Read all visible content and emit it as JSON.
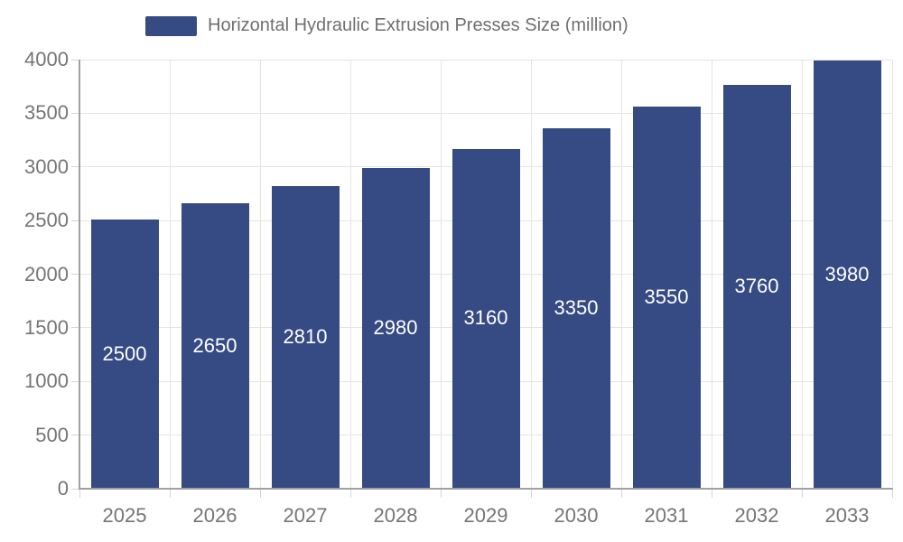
{
  "chart_data": {
    "type": "bar",
    "title": "Horizontal Hydraulic Extrusion Presses Size (million)",
    "legend_label": "Horizontal Hydraulic Extrusion Presses Size (million)",
    "categories": [
      "2025",
      "2026",
      "2027",
      "2028",
      "2029",
      "2030",
      "2031",
      "2032",
      "2033"
    ],
    "values": [
      2500,
      2650,
      2810,
      2980,
      3160,
      3350,
      3550,
      3760,
      3980
    ],
    "value_labels": [
      "2500",
      "2650",
      "2810",
      "2980",
      "3160",
      "3350",
      "3550",
      "3760",
      "3980"
    ],
    "xlabel": "",
    "ylabel": "",
    "ylim": [
      0,
      4000
    ],
    "ytick_step": 500,
    "ytick_labels": [
      "0",
      "500",
      "1000",
      "1500",
      "2000",
      "2500",
      "3000",
      "3500",
      "4000"
    ],
    "grid": true,
    "legend_position": "top",
    "colors": {
      "bar": "#364a83",
      "grid": "#e4e4e4",
      "tick": "#d4d4d4",
      "axis": "#a0a0a0",
      "tick_label": "#757575",
      "legend_text": "#6f6f6f",
      "value_label": "#ffffff",
      "background": "#ffffff"
    }
  }
}
